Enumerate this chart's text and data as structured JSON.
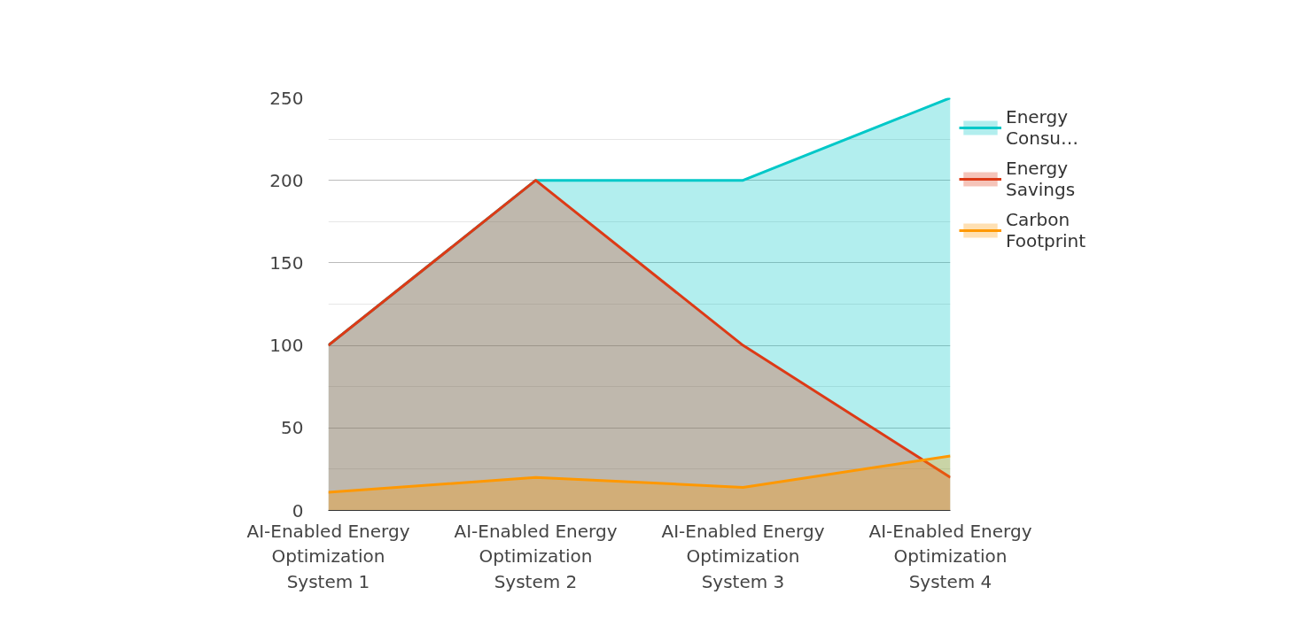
{
  "chart_data": {
    "type": "area",
    "categories": [
      "AI-Enabled Energy Optimization System 1",
      "AI-Enabled Energy Optimization System 2",
      "AI-Enabled Energy Optimization System 3",
      "AI-Enabled Energy Optimization System 4"
    ],
    "series": [
      {
        "name": "Energy Consu…",
        "color": "#00c8c8",
        "values": [
          100,
          200,
          200,
          250
        ]
      },
      {
        "name": "Energy Savings",
        "color": "#dd3a16",
        "values": [
          100,
          200,
          100,
          20
        ]
      },
      {
        "name": "Carbon Footprint",
        "color": "#ff9800",
        "values": [
          11,
          20,
          14,
          33
        ]
      }
    ],
    "ylim": [
      0,
      250
    ],
    "yticks": [
      0,
      50,
      100,
      150,
      200,
      250
    ],
    "grid": "y",
    "legend": "right"
  }
}
